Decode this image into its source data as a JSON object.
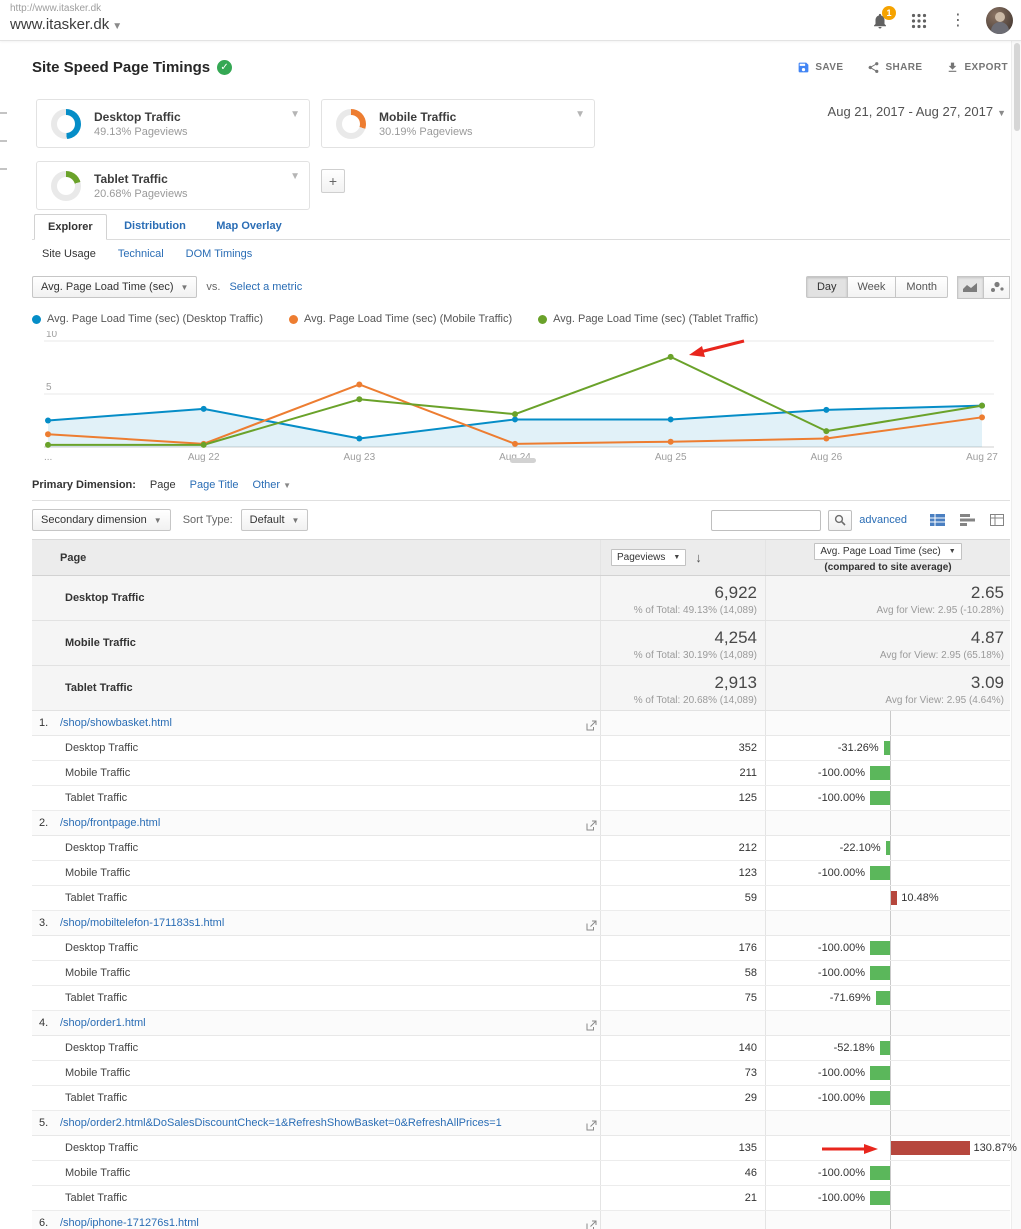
{
  "topbar": {
    "url": "http://www.itasker.dk",
    "site": "www.itasker.dk",
    "notification_count": "1"
  },
  "header": {
    "title": "Site Speed Page Timings",
    "save_label": "SAVE",
    "share_label": "SHARE",
    "export_label": "EXPORT"
  },
  "date_range": "Aug 21, 2017 - Aug 27, 2017",
  "segments": [
    {
      "name": "Desktop Traffic",
      "detail": "49.13% Pageviews",
      "pct": 49.13,
      "color": "#058dc7"
    },
    {
      "name": "Mobile Traffic",
      "detail": "30.19% Pageviews",
      "pct": 30.19,
      "color": "#ed7d31"
    },
    {
      "name": "Tablet Traffic",
      "detail": "20.68% Pageviews",
      "pct": 20.68,
      "color": "#6aa22a"
    }
  ],
  "add_segment_label": "+",
  "tabs": {
    "explorer": "Explorer",
    "distribution": "Distribution",
    "map_overlay": "Map Overlay"
  },
  "subtabs": {
    "site_usage": "Site Usage",
    "technical": "Technical",
    "dom_timings": "DOM Timings"
  },
  "metric_bar": {
    "metric_select": "Avg. Page Load Time (sec)",
    "vs_label": "vs.",
    "select_metric": "Select a metric",
    "day": "Day",
    "week": "Week",
    "month": "Month"
  },
  "legend": [
    {
      "label": "Avg. Page Load Time (sec) (Desktop Traffic)",
      "color": "#058dc7"
    },
    {
      "label": "Avg. Page Load Time (sec) (Mobile Traffic)",
      "color": "#ed7d31"
    },
    {
      "label": "Avg. Page Load Time (sec) (Tablet Traffic)",
      "color": "#6aa22a"
    }
  ],
  "chart_data": {
    "type": "line",
    "title": "Avg. Page Load Time (sec) by day",
    "x_labels": [
      "...",
      "Aug 22",
      "Aug 23",
      "Aug 24",
      "Aug 25",
      "Aug 26",
      "Aug 27"
    ],
    "y_ticks": [
      5,
      10
    ],
    "ylim": [
      0,
      10.9
    ],
    "grid": true,
    "series": [
      {
        "name": "Avg. Page Load Time (sec) (Desktop Traffic)",
        "color": "#058dc7",
        "area": true,
        "values": [
          2.5,
          3.6,
          0.8,
          2.6,
          2.6,
          3.5,
          3.9
        ]
      },
      {
        "name": "Avg. Page Load Time (sec) (Mobile Traffic)",
        "color": "#ed7d31",
        "values": [
          1.2,
          0.3,
          5.9,
          0.3,
          0.5,
          0.8,
          2.8
        ]
      },
      {
        "name": "Avg. Page Load Time (sec) (Tablet Traffic)",
        "color": "#6aa22a",
        "values": [
          0.2,
          0.2,
          4.5,
          3.1,
          8.5,
          1.5,
          3.9
        ]
      }
    ]
  },
  "primary_dimension": {
    "label": "Primary Dimension:",
    "page": "Page",
    "page_title": "Page Title",
    "other": "Other"
  },
  "table_controls": {
    "secondary_dimension": "Secondary dimension",
    "sort_type_label": "Sort Type:",
    "sort_type_value": "Default",
    "search_value": "",
    "advanced_label": "advanced"
  },
  "table": {
    "columns": {
      "page": "Page",
      "pageviews": "Pageviews",
      "metric": "Avg. Page Load Time (sec)",
      "metric_note": "(compared to site average)"
    },
    "bar_colors": {
      "negative": "#5bb75b",
      "positive": "#b6473d"
    },
    "summary_rows": [
      {
        "label": "Desktop Traffic",
        "pageviews": "6,922",
        "pageviews_sub": "% of Total: 49.13% (14,089)",
        "metric": "2.65",
        "metric_sub": "Avg for View: 2.95 (-10.28%)"
      },
      {
        "label": "Mobile Traffic",
        "pageviews": "4,254",
        "pageviews_sub": "% of Total: 30.19% (14,089)",
        "metric": "4.87",
        "metric_sub": "Avg for View: 2.95 (65.18%)"
      },
      {
        "label": "Tablet Traffic",
        "pageviews": "2,913",
        "pageviews_sub": "% of Total: 20.68% (14,089)",
        "metric": "3.09",
        "metric_sub": "Avg for View: 2.95 (4.64%)"
      }
    ],
    "page_groups": [
      {
        "index": "1.",
        "page": "/shop/showbasket.html",
        "segments": [
          {
            "label": "Desktop Traffic",
            "pageviews": "352",
            "delta": "-31.26%",
            "delta_value": -31.26
          },
          {
            "label": "Mobile Traffic",
            "pageviews": "211",
            "delta": "-100.00%",
            "delta_value": -100
          },
          {
            "label": "Tablet Traffic",
            "pageviews": "125",
            "delta": "-100.00%",
            "delta_value": -100
          }
        ]
      },
      {
        "index": "2.",
        "page": "/shop/frontpage.html",
        "segments": [
          {
            "label": "Desktop Traffic",
            "pageviews": "212",
            "delta": "-22.10%",
            "delta_value": -22.1
          },
          {
            "label": "Mobile Traffic",
            "pageviews": "123",
            "delta": "-100.00%",
            "delta_value": -100
          },
          {
            "label": "Tablet Traffic",
            "pageviews": "59",
            "delta": "10.48%",
            "delta_value": 10.48
          }
        ]
      },
      {
        "index": "3.",
        "page": "/shop/mobiltelefon-171183s1.html",
        "segments": [
          {
            "label": "Desktop Traffic",
            "pageviews": "176",
            "delta": "-100.00%",
            "delta_value": -100
          },
          {
            "label": "Mobile Traffic",
            "pageviews": "58",
            "delta": "-100.00%",
            "delta_value": -100
          },
          {
            "label": "Tablet Traffic",
            "pageviews": "75",
            "delta": "-71.69%",
            "delta_value": -71.69
          }
        ]
      },
      {
        "index": "4.",
        "page": "/shop/order1.html",
        "segments": [
          {
            "label": "Desktop Traffic",
            "pageviews": "140",
            "delta": "-52.18%",
            "delta_value": -52.18
          },
          {
            "label": "Mobile Traffic",
            "pageviews": "73",
            "delta": "-100.00%",
            "delta_value": -100
          },
          {
            "label": "Tablet Traffic",
            "pageviews": "29",
            "delta": "-100.00%",
            "delta_value": -100
          }
        ]
      },
      {
        "index": "5.",
        "page": "/shop/order2.html&DoSalesDiscountCheck=1&RefreshShowBasket=0&RefreshAllPrices=1",
        "segments": [
          {
            "label": "Desktop Traffic",
            "pageviews": "135",
            "delta": "130.87%",
            "delta_value": 130.87,
            "annotated": true
          },
          {
            "label": "Mobile Traffic",
            "pageviews": "46",
            "delta": "-100.00%",
            "delta_value": -100
          },
          {
            "label": "Tablet Traffic",
            "pageviews": "21",
            "delta": "-100.00%",
            "delta_value": -100
          }
        ]
      },
      {
        "index": "6.",
        "page": "/shop/iphone-171276s1.html",
        "segments": []
      }
    ]
  }
}
